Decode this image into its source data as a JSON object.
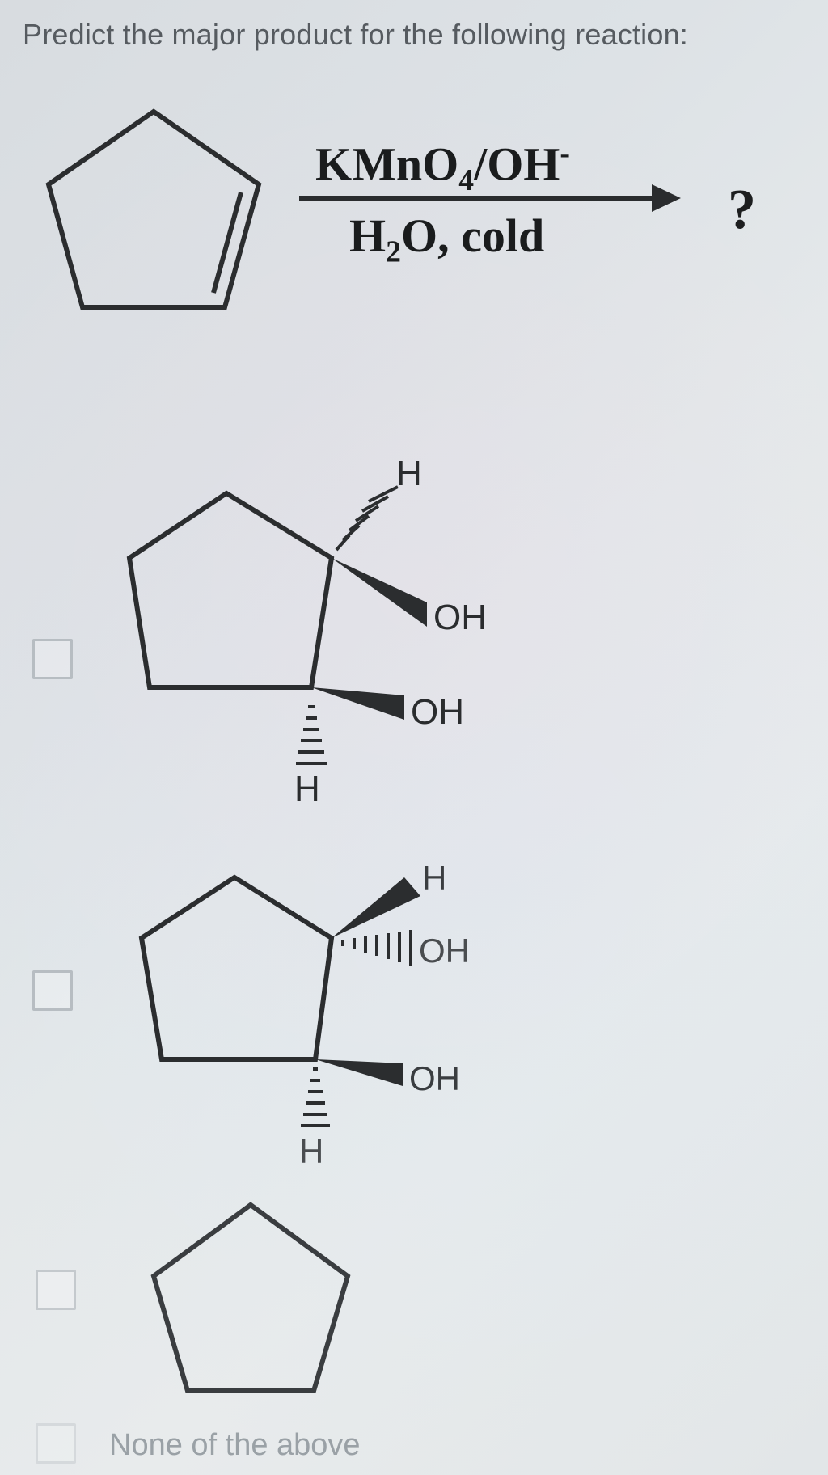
{
  "question": "Predict the major product for the following reaction:",
  "reaction": {
    "reagent_top": "KMnO<sub>4</sub>/OH<sup>-</sup>",
    "reagent_bottom": "H<sub>2</sub>O, cold",
    "product_placeholder": "?"
  },
  "labels": {
    "H": "H",
    "OH": "OH"
  },
  "options": {
    "none_label": "None of the above"
  },
  "style": {
    "stroke": "#2b2d2f",
    "stroke_light": "#4a4d50",
    "stroke_width": 6,
    "stroke_width_thin": 5,
    "wedge_fill": "#2b2d2f",
    "label_color": "#2a2c2e",
    "label_fontsize": 44,
    "checkbox_border": "#b7bdc2"
  }
}
